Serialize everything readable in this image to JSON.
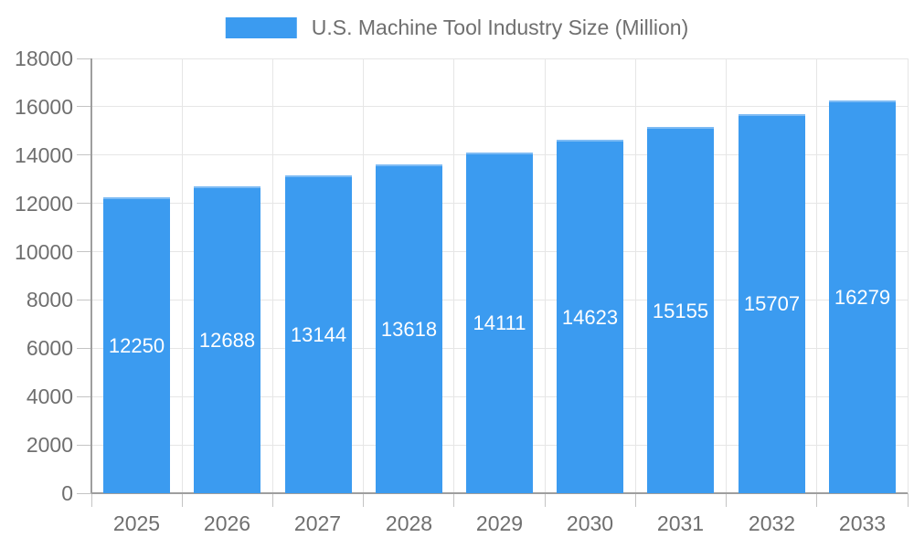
{
  "chart_data": {
    "type": "bar",
    "title": "U.S. Machine Tool Industry Size (Million)",
    "legend": {
      "label": "U.S. Machine Tool Industry Size (Million)",
      "position": "top"
    },
    "categories": [
      "2025",
      "2026",
      "2027",
      "2028",
      "2029",
      "2030",
      "2031",
      "2032",
      "2033"
    ],
    "values": [
      12250,
      12688,
      13144,
      13618,
      14111,
      14623,
      15155,
      15707,
      16279
    ],
    "value_labels": [
      "12250",
      "12688",
      "13144",
      "13618",
      "14111",
      "14623",
      "15155",
      "15707",
      "16279"
    ],
    "xlabel": "",
    "ylabel": "",
    "ylim": [
      0,
      18000
    ],
    "ytick_step": 2000,
    "ytick_labels": [
      "0",
      "2000",
      "4000",
      "6000",
      "8000",
      "10000",
      "12000",
      "14000",
      "16000",
      "18000"
    ],
    "grid": true,
    "colors": {
      "bar": "#3b9bf0",
      "bar_top_edge": "#7dbbf4",
      "value_label": "#ffffff",
      "axis_text": "#6f6f6f",
      "axis_line": "#9e9e9e",
      "tick": "#c4c4c4",
      "grid": "#e6e6e6",
      "background": "#ffffff"
    }
  }
}
